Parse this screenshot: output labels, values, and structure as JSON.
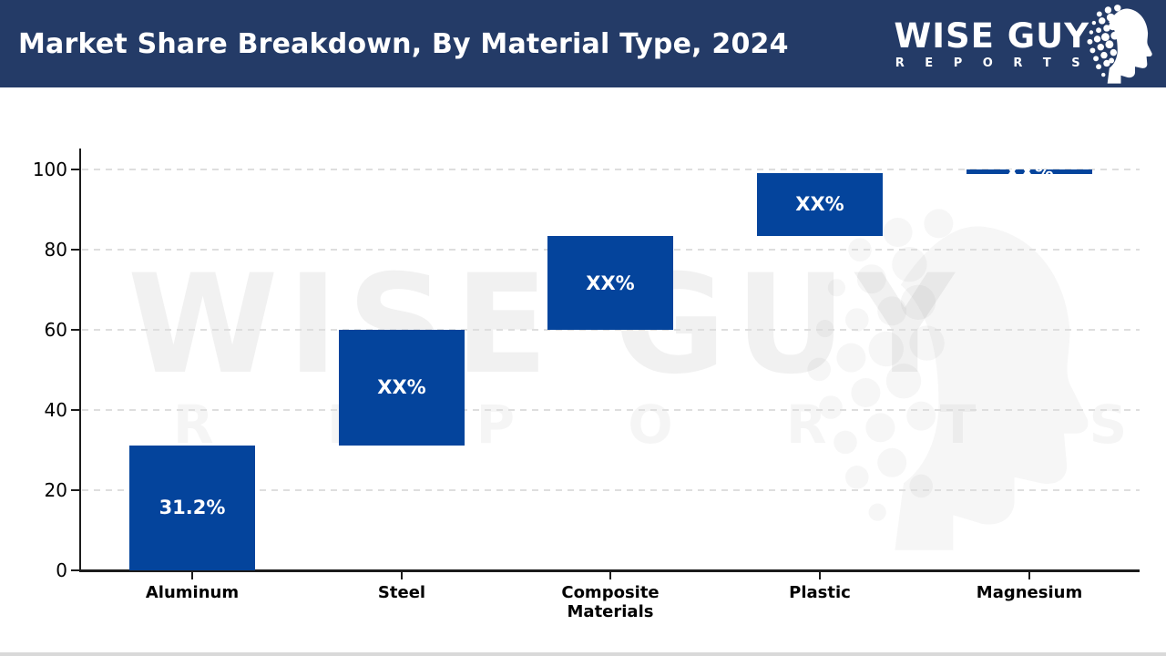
{
  "header": {
    "title": "Market Share Breakdown, By Material Type, 2024",
    "logo": {
      "name": "WISE GUY",
      "subtitle": "R E P O R T S"
    }
  },
  "watermark": {
    "line1": "WISE GUY",
    "line2": "R E P O R T S"
  },
  "colors": {
    "header_bg": "#243b67",
    "bar": "#04449c",
    "axis": "#1c1c1c",
    "gridline": "#dedede",
    "bar_label": "#ffffff",
    "bottom_strip": "#d9d9d9"
  },
  "chart_data": {
    "type": "bar",
    "subtype": "waterfall-cumulative",
    "title": "Market Share Breakdown, By Material Type, 2024",
    "categories": [
      "Aluminum",
      "Steel",
      "Composite Materials",
      "Plastic",
      "Magnesium"
    ],
    "segments": [
      {
        "category": "Aluminum",
        "start": 0,
        "end": 31.2,
        "value": 31.2,
        "label": "31.2%"
      },
      {
        "category": "Steel",
        "start": 31.2,
        "end": 60,
        "value": 28.8,
        "label": "XX%"
      },
      {
        "category": "Composite Materials",
        "start": 60,
        "end": 83.4,
        "value": 23.4,
        "label": "XX%"
      },
      {
        "category": "Plastic",
        "start": 83.4,
        "end": 99.1,
        "value": 15.7,
        "label": "XX%"
      },
      {
        "category": "Magnesium",
        "start": 99.1,
        "end": 100,
        "value": 0.9,
        "label": "XX%"
      }
    ],
    "y_ticks": [
      0,
      20,
      40,
      60,
      80,
      100
    ],
    "ylim": [
      0,
      100
    ],
    "xlabel": "",
    "ylabel": "",
    "grid": "dashed-horizontal",
    "legend": "none"
  }
}
